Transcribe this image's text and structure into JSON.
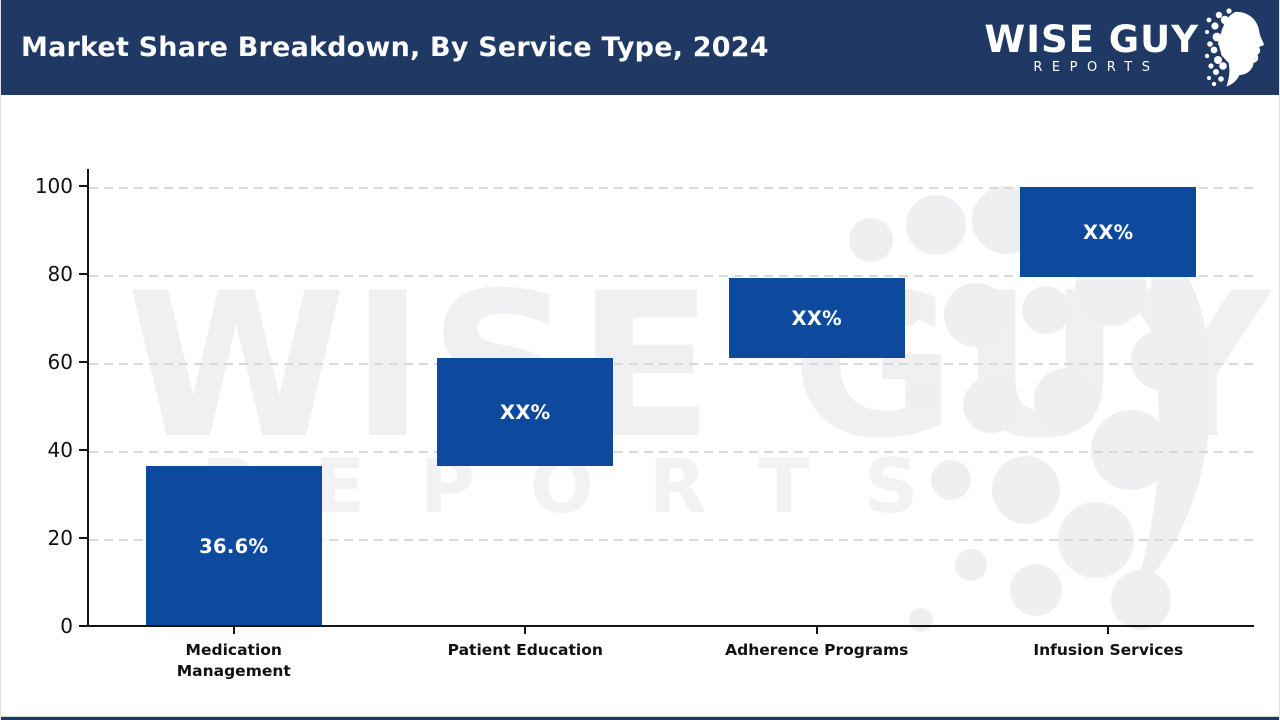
{
  "header": {
    "title": "Market Share Breakdown, By Service Type, 2024",
    "bg_color": "#1f3864",
    "logo": {
      "line1": "WISE GUY",
      "line2": "REPORTS"
    }
  },
  "watermark": {
    "line1": "WISE GUY",
    "line2": "REPORTS"
  },
  "chart_data": {
    "type": "waterfall",
    "title": "Market Share Breakdown, By Service Type, 2024",
    "xlabel": "",
    "ylabel": "",
    "categories": [
      "Medication Management",
      "Patient Education",
      "Adherence Programs",
      "Infusion Services"
    ],
    "tick_labels": [
      "Medication\nManagement",
      "Patient Education",
      "Adherence Programs",
      "Infusion Services"
    ],
    "segments": [
      {
        "category": "Medication Management",
        "start": 0,
        "end": 36.6,
        "label": "36.6%"
      },
      {
        "category": "Patient Education",
        "start": 36.6,
        "end": 61.1,
        "label": "XX%"
      },
      {
        "category": "Adherence Programs",
        "start": 61.1,
        "end": 79.3,
        "label": "XX%"
      },
      {
        "category": "Infusion Services",
        "start": 79.5,
        "end": 100,
        "label": "XX%"
      }
    ],
    "ylim": [
      0,
      100
    ],
    "yticks": [
      0,
      20,
      40,
      60,
      80,
      100
    ],
    "grid": "horizontal-dashed",
    "legend": "none",
    "bar_color": "#0d4a9e",
    "bar_label_color": "#ffffff",
    "axis_color": "#151515",
    "grid_color": "#d9d9d9"
  }
}
